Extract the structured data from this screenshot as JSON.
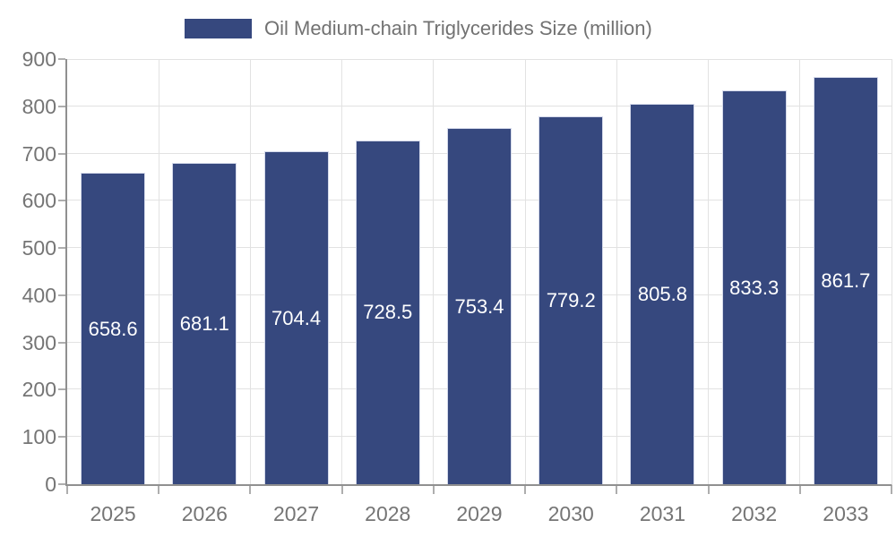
{
  "chart_data": {
    "type": "bar",
    "title": "Oil Medium-chain Triglycerides Size (million)",
    "legend_position": "top",
    "categories": [
      "2025",
      "2026",
      "2027",
      "2028",
      "2029",
      "2030",
      "2031",
      "2032",
      "2033"
    ],
    "values": [
      658.6,
      681.1,
      704.4,
      728.5,
      753.4,
      779.2,
      805.8,
      833.3,
      861.7
    ],
    "value_labels": [
      "658.6",
      "681.1",
      "704.4",
      "728.5",
      "753.4",
      "779.2",
      "805.8",
      "833.3",
      "861.7"
    ],
    "xlabel": "",
    "ylabel": "",
    "ylim": [
      0,
      900
    ],
    "ytick_step": 100,
    "ytick_labels": [
      "0",
      "100",
      "200",
      "300",
      "400",
      "500",
      "600",
      "700",
      "800",
      "900"
    ],
    "grid": true,
    "colors": {
      "bar_fill": "#36487E",
      "bar_border": "#d4d9ea",
      "grid_line": "#e2e2e2",
      "axis_line": "#909090",
      "tick_mark": "#aeaeae",
      "axis_text": "#757575",
      "value_text": "#ffffff",
      "legend_text": "#727272",
      "background": "#ffffff"
    }
  }
}
